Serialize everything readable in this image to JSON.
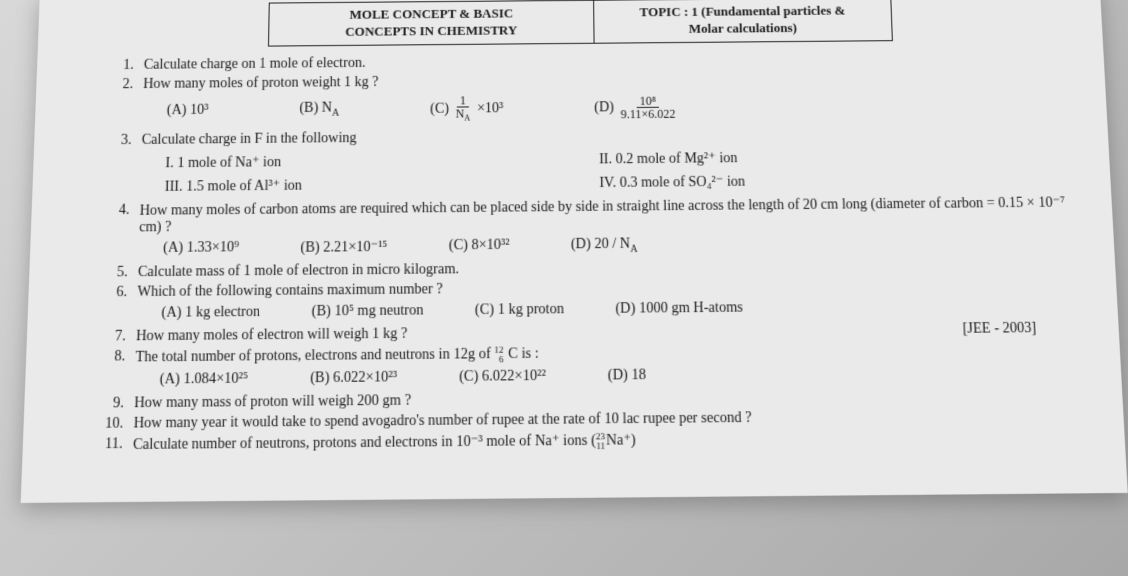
{
  "header": {
    "left_line1": "MOLE CONCEPT & BASIC",
    "left_line2": "CONCEPTS IN CHEMISTRY",
    "right_line1": "TOPIC : 1 (Fundamental particles &",
    "right_line2": "Molar calculations)"
  },
  "q1": {
    "num": "1.",
    "text": "Calculate charge on 1 mole of electron."
  },
  "q2": {
    "num": "2.",
    "text": "How many moles of proton weight 1 kg ?",
    "optA": "(A)  10³",
    "optB": "(B)  N",
    "optB_sub": "A",
    "optC_pre": "(C)  ",
    "optC_num": "1",
    "optC_den": "N",
    "optC_den_sub": "A",
    "optC_post": " ×10³",
    "optD_pre": "(D)  ",
    "optD_num": "10⁸",
    "optD_den": "9.11×6.022"
  },
  "q3": {
    "num": "3.",
    "text": "Calculate charge in F in the following",
    "s1": "I.   1 mole of Na⁺ ion",
    "s2": "II.  0.2 mole of Mg²⁺ ion",
    "s3": "III. 1.5 mole of Al³⁺ ion",
    "s4": "IV.  0.3 mole of SO₄²⁻ ion"
  },
  "q4": {
    "num": "4.",
    "text": "How many moles of carbon atoms are required which can be placed side by side in straight line across the length of 20 cm long (diameter of carbon = 0.15 × 10⁻⁷ cm) ?",
    "optA": "(A)  1.33×10⁹",
    "optB": "(B)  2.21×10⁻¹⁵",
    "optC": "(C)  8×10³²",
    "optD": "(D)  20 / N",
    "optD_sub": "A"
  },
  "q5": {
    "num": "5.",
    "text": "Calculate mass of 1 mole of electron in micro kilogram."
  },
  "q6": {
    "num": "6.",
    "text": "Which of the following contains maximum number ?",
    "optA": "(A)  1 kg electron",
    "optB": "(B)  10⁵ mg neutron",
    "optC": "(C)  1 kg proton",
    "optD": "(D)  1000 gm H-atoms"
  },
  "q7": {
    "num": "7.",
    "text": "How many moles of electron will weigh 1 kg ?",
    "ref": "[JEE - 2003]"
  },
  "q8": {
    "num": "8.",
    "text_pre": "The total number of protons, electrons and neutrons in 12g of ",
    "iso_top": "12",
    "iso_bot": "6",
    "text_post": "C is :",
    "optA": "(A)  1.084×10²⁵",
    "optB": "(B)  6.022×10²³",
    "optC": "(C)  6.022×10²²",
    "optD": "(D)  18"
  },
  "q9": {
    "num": "9.",
    "text": "How many mass of proton will weigh 200 gm ?"
  },
  "q10": {
    "num": "10.",
    "text": "How many year it would take to spend avogadro's number of rupee at the rate of 10 lac rupee per second ?"
  },
  "q11": {
    "num": "11.",
    "text_pre": "Calculate number of neutrons, protons and electrons in 10⁻³ mole of Na⁺ ions ",
    "iso_top": "23",
    "iso_bot": "11",
    "text_post": "Na⁺"
  }
}
